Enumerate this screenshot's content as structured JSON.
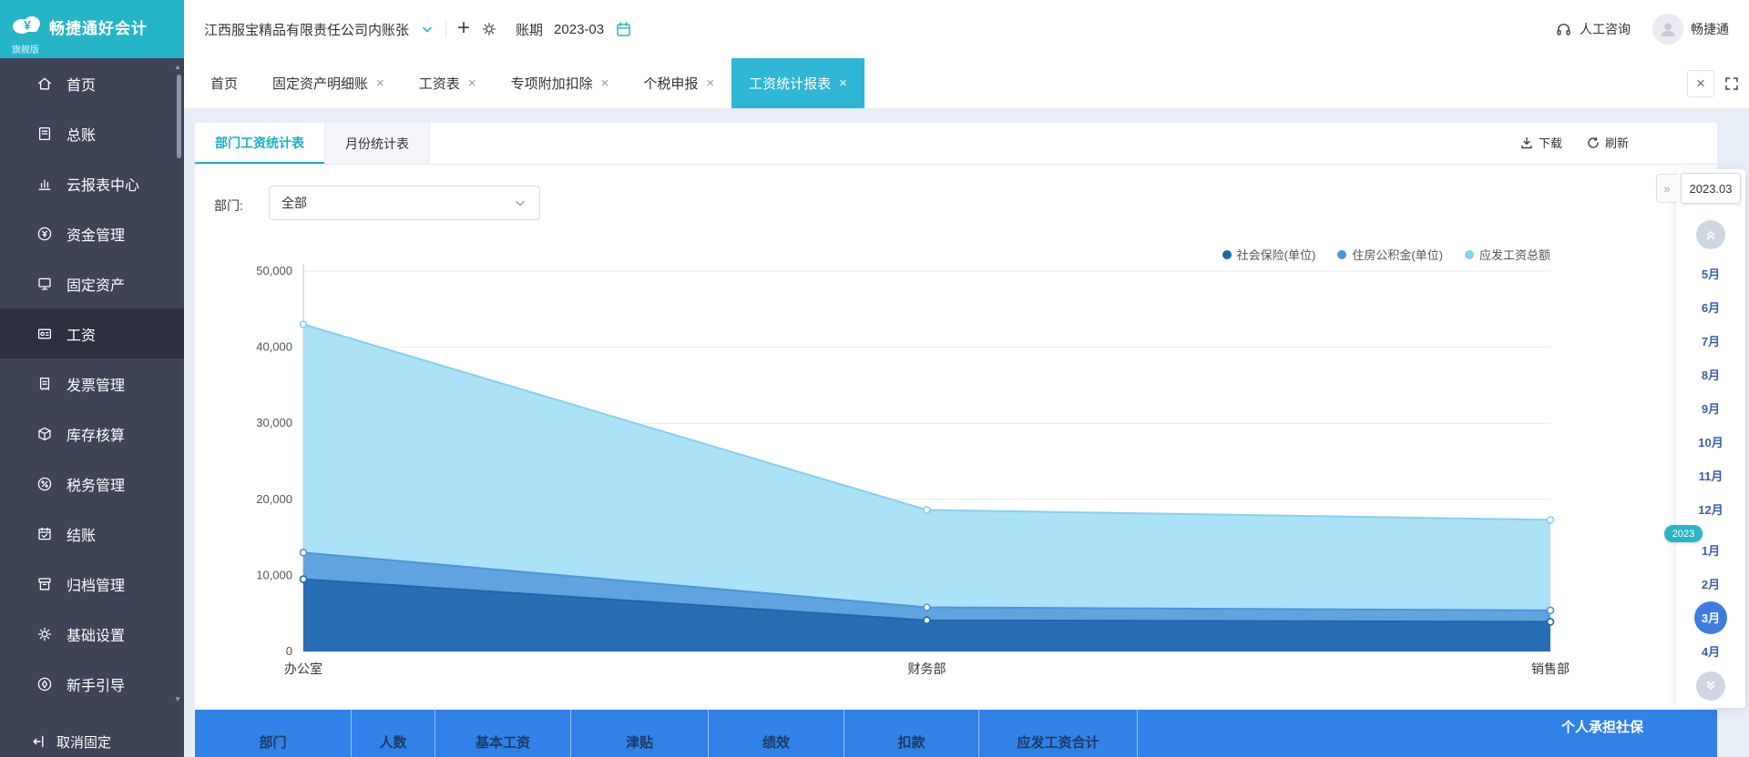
{
  "app": {
    "name": "畅捷通好会计",
    "edition": "旗舰版",
    "logo_glyph": "¥",
    "brand_color": "#26b4c7"
  },
  "topbar": {
    "company": "江西服宝精品有限责任公司内账张",
    "add_glyph": "+",
    "period_label": "账期",
    "period_value": "2023-03",
    "help_label": "人工咨询",
    "user_label": "畅捷通"
  },
  "sidebar": {
    "scroll_up_glyph": "▲",
    "scroll_down_glyph": "▼",
    "unpin_label": "取消固定",
    "items": [
      {
        "id": "home",
        "label": "首页",
        "icon": "home-icon"
      },
      {
        "id": "ledger",
        "label": "总账",
        "icon": "ledger-icon"
      },
      {
        "id": "cloud-report",
        "label": "云报表中心",
        "icon": "cloud-report-icon"
      },
      {
        "id": "funds",
        "label": "资金管理",
        "icon": "funds-icon"
      },
      {
        "id": "fixed-asset",
        "label": "固定资产",
        "icon": "fixed-asset-icon"
      },
      {
        "id": "salary",
        "label": "工资",
        "icon": "salary-icon",
        "active": true
      },
      {
        "id": "invoice",
        "label": "发票管理",
        "icon": "invoice-icon"
      },
      {
        "id": "inventory",
        "label": "库存核算",
        "icon": "inventory-icon"
      },
      {
        "id": "tax",
        "label": "税务管理",
        "icon": "tax-icon"
      },
      {
        "id": "closing",
        "label": "结账",
        "icon": "closing-icon"
      },
      {
        "id": "archive",
        "label": "归档管理",
        "icon": "archive-icon"
      },
      {
        "id": "settings",
        "label": "基础设置",
        "icon": "settings-icon"
      },
      {
        "id": "guide",
        "label": "新手引导",
        "icon": "guide-icon"
      }
    ]
  },
  "tabs": {
    "close_glyph": "×",
    "items": [
      {
        "id": "home",
        "label": "首页",
        "closable": false
      },
      {
        "id": "fixed-asset-detail",
        "label": "固定资产明细账",
        "closable": true
      },
      {
        "id": "salary-sheet",
        "label": "工资表",
        "closable": true
      },
      {
        "id": "special-deduction",
        "label": "专项附加扣除",
        "closable": true
      },
      {
        "id": "tax-return",
        "label": "个税申报",
        "closable": true
      },
      {
        "id": "salary-report",
        "label": "工资统计报表",
        "closable": true,
        "active": true
      }
    ]
  },
  "report": {
    "subtabs": [
      {
        "label": "部门工资统计表",
        "active": true
      },
      {
        "label": "月份统计表",
        "active": false
      }
    ],
    "actions": {
      "download": "下载",
      "refresh": "刷新"
    },
    "filter": {
      "label": "部门:",
      "value": "全部"
    }
  },
  "chart_data": {
    "type": "area",
    "title": "",
    "categories": [
      "办公室",
      "财务部",
      "销售部"
    ],
    "series": [
      {
        "name": "社会保险(单位)",
        "values": [
          9500,
          4100,
          3900
        ],
        "color": "#1f65ad",
        "fill": "rgba(31,101,173,0.85)"
      },
      {
        "name": "住房公积金(单位)",
        "values": [
          13000,
          5800,
          5400
        ],
        "color": "#4f93d8",
        "fill": "rgba(79,147,216,0.8)"
      },
      {
        "name": "应发工资总额",
        "values": [
          43000,
          18600,
          17300
        ],
        "color": "#85d0f0",
        "fill": "rgba(168,224,246,0.95)"
      }
    ],
    "ylim": [
      0,
      50000
    ],
    "yticks": [
      "0",
      "10,000",
      "20,000",
      "30,000",
      "40,000",
      "50,000"
    ],
    "grid": true,
    "legend_position": "top-right"
  },
  "table": {
    "columns": [
      "部门",
      "人数",
      "基本工资",
      "津贴",
      "绩效",
      "扣款",
      "应发工资合计"
    ],
    "group_header": "个人承担社保"
  },
  "period_panel": {
    "collapse_glyph": "»",
    "current": "2023.03",
    "year_badge": "2023",
    "months": [
      "5月",
      "6月",
      "7月",
      "8月",
      "9月",
      "10月",
      "11月",
      "12月",
      "1月",
      "2月",
      "3月",
      "4月"
    ],
    "active_month": "3月"
  }
}
